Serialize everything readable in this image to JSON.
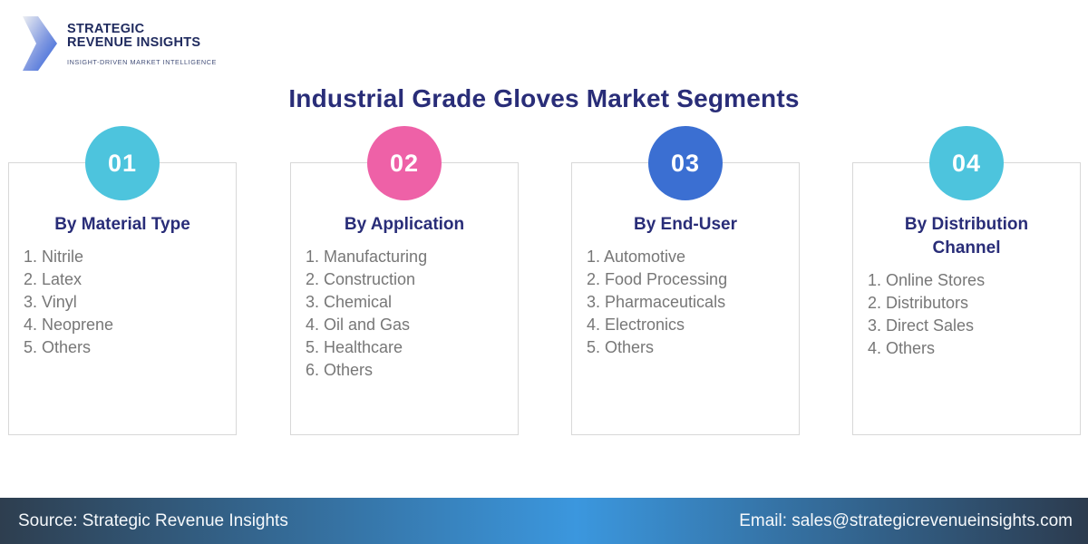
{
  "logo": {
    "line1": "STRATEGIC",
    "line2": "REVENUE INSIGHTS",
    "tagline": "INSIGHT-DRIVEN MARKET INTELLIGENCE"
  },
  "title": "Industrial Grade Gloves Market Segments",
  "segments": [
    {
      "badge": "01",
      "badge_color": "#4dc4dd",
      "heading": "By Material Type",
      "items": [
        "Nitrile",
        "Latex",
        "Vinyl",
        "Neoprene",
        "Others"
      ]
    },
    {
      "badge": "02",
      "badge_color": "#ee61a7",
      "heading": "By Application",
      "items": [
        "Manufacturing",
        "Construction",
        "Chemical",
        "Oil and Gas",
        "Healthcare",
        "Others"
      ]
    },
    {
      "badge": "03",
      "badge_color": "#3b6fd2",
      "heading": "By End-User",
      "items": [
        "Automotive",
        "Food Processing",
        "Pharmaceuticals",
        "Electronics",
        "Others"
      ]
    },
    {
      "badge": "04",
      "badge_color": "#4dc4dd",
      "heading": "By Distribution Channel",
      "items": [
        "Online Stores",
        "Distributors",
        "Direct Sales",
        "Others"
      ]
    }
  ],
  "footer": {
    "source": "Source: Strategic Revenue Insights",
    "email": "Email: sales@strategicrevenueinsights.com"
  },
  "colors": {
    "heading_navy": "#292d78",
    "list_gray": "#777777",
    "badge_cyan": "#4dc4dd",
    "badge_pink": "#ee61a7",
    "badge_blue": "#3b6fd2",
    "footer_dark": "#2e3e4f",
    "footer_blue": "#3b97de"
  }
}
